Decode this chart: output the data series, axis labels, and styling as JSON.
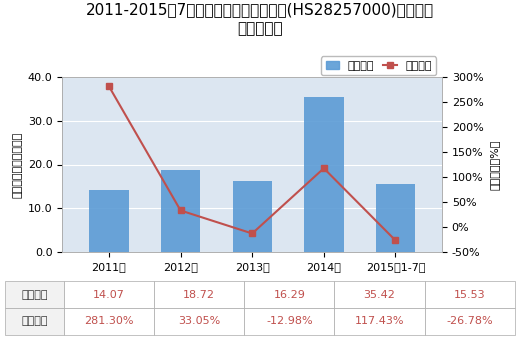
{
  "title_line1": "2011-2015年7月钼的氧化物及氢氧化物(HS28257000)出口总额",
  "title_line2": "及增速统计",
  "categories": [
    "2011年",
    "2012年",
    "2013年",
    "2014年",
    "2015年1-7月"
  ],
  "bar_values": [
    14.07,
    18.72,
    16.29,
    35.42,
    15.53
  ],
  "growth_values": [
    281.3,
    33.05,
    -12.98,
    117.43,
    -26.78
  ],
  "bar_color": "#5B9BD5",
  "line_color": "#C0504D",
  "marker_color": "#C0504D",
  "bar_label": "出口金额",
  "line_label": "同比增长",
  "ylabel_left": "出口金额（百万美元）",
  "ylabel_right": "同比增长（%）",
  "ylim_left": [
    0,
    40
  ],
  "ylim_right": [
    -50,
    300
  ],
  "yticks_left": [
    0.0,
    10.0,
    20.0,
    30.0,
    40.0
  ],
  "yticks_right": [
    -50,
    0,
    50,
    100,
    150,
    200,
    250,
    300
  ],
  "ytick_labels_right": [
    "-50%",
    "0%",
    "50%",
    "100%",
    "150%",
    "200%",
    "250%",
    "300%"
  ],
  "table_row1_label": "出口金额",
  "table_row2_label": "同比增长",
  "table_row1_values": [
    "14.07",
    "18.72",
    "16.29",
    "35.42",
    "15.53"
  ],
  "table_row2_values": [
    "281.30%",
    "33.05%",
    "-12.98%",
    "117.43%",
    "-26.78%"
  ],
  "bg_color": "#FFFFFF",
  "plot_bg_color": "#DCE6F1",
  "title_fontsize": 11,
  "axis_fontsize": 8,
  "table_fontsize": 8,
  "legend_fontsize": 8,
  "ylabel_fontsize": 8,
  "table_label_color": "#333333",
  "table_value_color1": "#C0504D",
  "table_value_color2": "#C0504D",
  "table_label_bg": "#F2F2F2",
  "table_value_bg": "#FFFFFF",
  "grid_color": "#FFFFFF",
  "spine_color": "#AAAAAA"
}
